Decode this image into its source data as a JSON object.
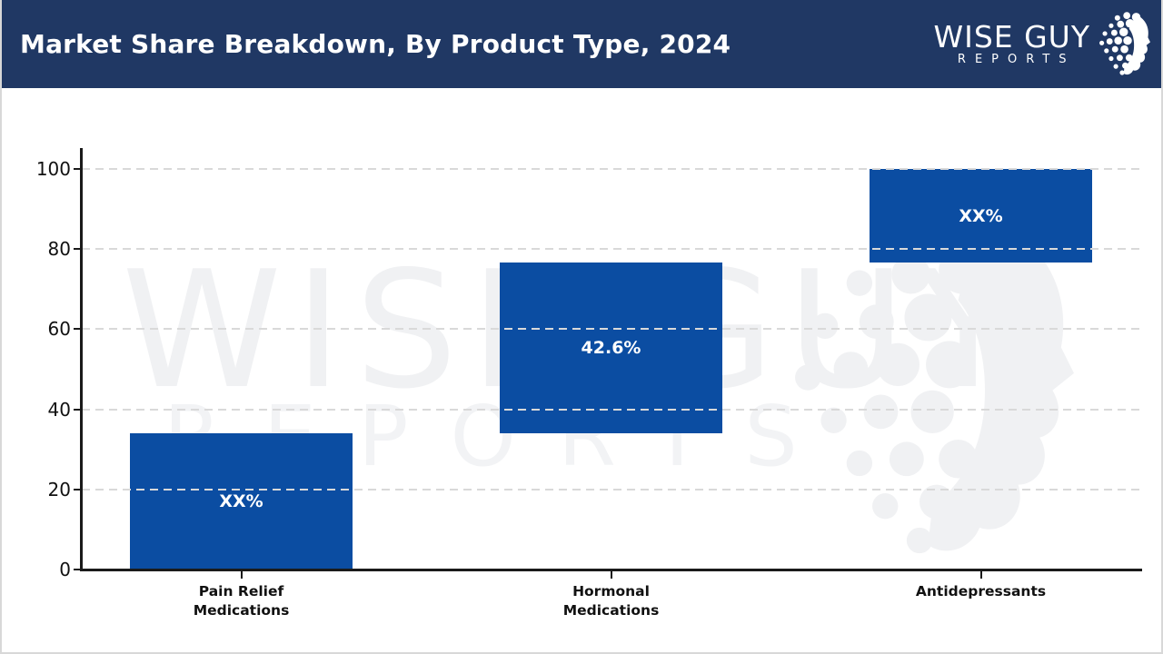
{
  "header": {
    "title": "Market Share Breakdown, By Product Type, 2024",
    "logo": {
      "line1": "WISE GUY",
      "line2": "REPORTS",
      "face_icon": "dotted-face-profile"
    }
  },
  "watermark": {
    "line1": "WISE GUY",
    "line2": "REPORTS",
    "face_icon": "dotted-face-profile"
  },
  "colors": {
    "header_bg": "#203864",
    "bar": "#0b4da2",
    "grid": "#d9d9d9",
    "axis": "#1a1a1a",
    "bar_label": "#ffffff",
    "watermark": "#f0f1f3",
    "watermark2": "#f2f3f5"
  },
  "chart_data": {
    "type": "bar",
    "subtype": "waterfall",
    "title": "Market Share Breakdown, By Product Type, 2024",
    "categories": [
      "Pain Relief\nMedications",
      "Hormonal\nMedications",
      "Antidepressants"
    ],
    "segments": [
      {
        "category": "Pain Relief Medications",
        "start": 0,
        "end": 34,
        "label": "XX%"
      },
      {
        "category": "Hormonal Medications",
        "start": 34,
        "end": 76.6,
        "label": "42.6%"
      },
      {
        "category": "Antidepressants",
        "start": 76.6,
        "end": 100,
        "label": "XX%"
      }
    ],
    "xlabel": "",
    "ylabel": "",
    "ylim": [
      0,
      100
    ],
    "yticks": [
      0,
      20,
      40,
      60,
      80,
      100
    ],
    "grid": true,
    "grid_style": "dashed",
    "grid_over_bars": true,
    "legend": false,
    "bar_color": "#0b4da2",
    "value_label_color": "#ffffff"
  }
}
